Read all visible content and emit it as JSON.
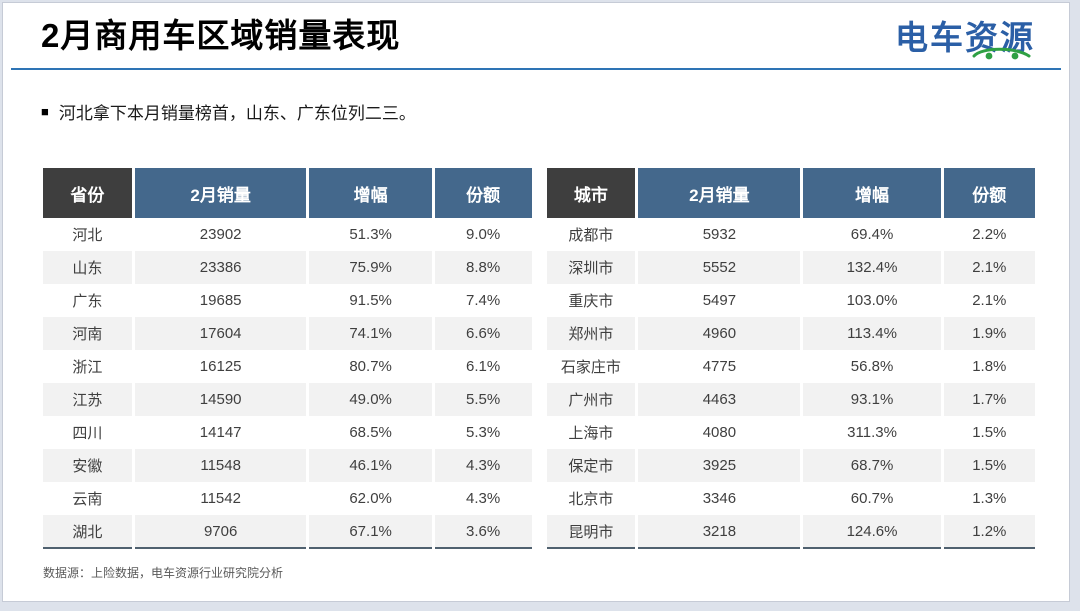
{
  "slide": {
    "title": "2月商用车区域销量表现",
    "logo_text": "电车资源",
    "bullet_marker": "■",
    "bullet_text": "河北拿下本月销量榜首，山东、广东位列二三。",
    "footer": "数据源：上险数据，电车资源行业研究院分析"
  },
  "colors": {
    "header_first": "#3E3E3E",
    "header_blue": "#44688C",
    "row_stripe": "#F2F2F2",
    "title_rule": "#2E74B5",
    "logo_blue": "#2B5FA6",
    "logo_green": "#2FA043",
    "table_border": "#50616F",
    "footer_text": "#595959",
    "page_bg": "#DDE2EB"
  },
  "chart_data": [
    {
      "type": "table",
      "columns": [
        "省份",
        "2月销量",
        "增幅",
        "份额"
      ],
      "rows": [
        [
          "河北",
          "23902",
          "51.3%",
          "9.0%"
        ],
        [
          "山东",
          "23386",
          "75.9%",
          "8.8%"
        ],
        [
          "广东",
          "19685",
          "91.5%",
          "7.4%"
        ],
        [
          "河南",
          "17604",
          "74.1%",
          "6.6%"
        ],
        [
          "浙江",
          "16125",
          "80.7%",
          "6.1%"
        ],
        [
          "江苏",
          "14590",
          "49.0%",
          "5.5%"
        ],
        [
          "四川",
          "14147",
          "68.5%",
          "5.3%"
        ],
        [
          "安徽",
          "11548",
          "46.1%",
          "4.3%"
        ],
        [
          "云南",
          "11542",
          "62.0%",
          "4.3%"
        ],
        [
          "湖北",
          "9706",
          "67.1%",
          "3.6%"
        ]
      ]
    },
    {
      "type": "table",
      "columns": [
        "城市",
        "2月销量",
        "增幅",
        "份额"
      ],
      "rows": [
        [
          "成都市",
          "5932",
          "69.4%",
          "2.2%"
        ],
        [
          "深圳市",
          "5552",
          "132.4%",
          "2.1%"
        ],
        [
          "重庆市",
          "5497",
          "103.0%",
          "2.1%"
        ],
        [
          "郑州市",
          "4960",
          "113.4%",
          "1.9%"
        ],
        [
          "石家庄市",
          "4775",
          "56.8%",
          "1.8%"
        ],
        [
          "广州市",
          "4463",
          "93.1%",
          "1.7%"
        ],
        [
          "上海市",
          "4080",
          "311.3%",
          "1.5%"
        ],
        [
          "保定市",
          "3925",
          "68.7%",
          "1.5%"
        ],
        [
          "北京市",
          "3346",
          "60.7%",
          "1.3%"
        ],
        [
          "昆明市",
          "3218",
          "124.6%",
          "1.2%"
        ]
      ]
    }
  ]
}
